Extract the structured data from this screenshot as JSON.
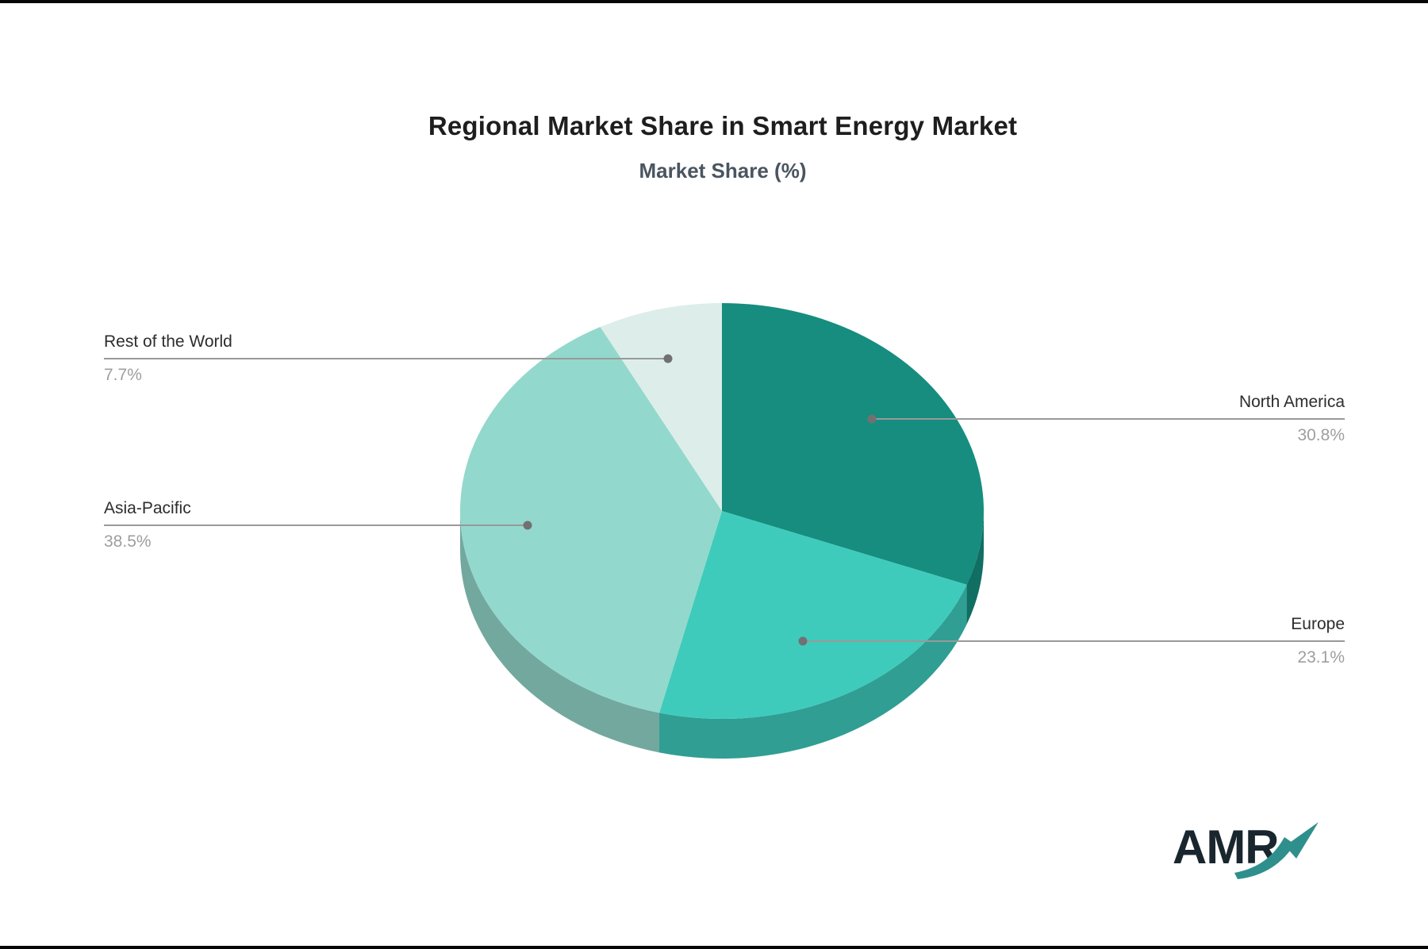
{
  "title": "Regional Market Share in Smart Energy Market",
  "subtitle": "Market Share (%)",
  "brand": {
    "text": "AMR"
  },
  "chart_data": {
    "type": "pie",
    "title": "Regional Market Share in Smart Energy Market",
    "subtitle": "Market Share (%)",
    "value_unit": "%",
    "style_3d": true,
    "start_angle": "top",
    "direction": "clockwise",
    "label_layout": "outside with leader lines and dots",
    "legend": "none",
    "slices": [
      {
        "label": "North America",
        "value": 30.8,
        "display_value": "30.8%",
        "color": "#168d7f",
        "label_side": "right"
      },
      {
        "label": "Europe",
        "value": 23.1,
        "display_value": "23.1%",
        "color": "#3ecbbc",
        "label_side": "right"
      },
      {
        "label": "Asia-Pacific",
        "value": 38.5,
        "display_value": "38.5%",
        "color": "#93d8cc",
        "label_side": "left"
      },
      {
        "label": "Rest of the World",
        "value": 7.7,
        "display_value": "7.7%",
        "color": "#ddeeea",
        "label_side": "left"
      }
    ]
  },
  "colors": {
    "background": "#ffffff",
    "title_text": "#1e1e1e",
    "subtitle_text": "#4a5560",
    "label_text": "#2d2d2d",
    "value_text": "#9e9e9e",
    "leader_line": "#999999",
    "leader_dot": "#717171",
    "logo_text": "#1a262e",
    "logo_arrow": "#2f8f8c"
  }
}
